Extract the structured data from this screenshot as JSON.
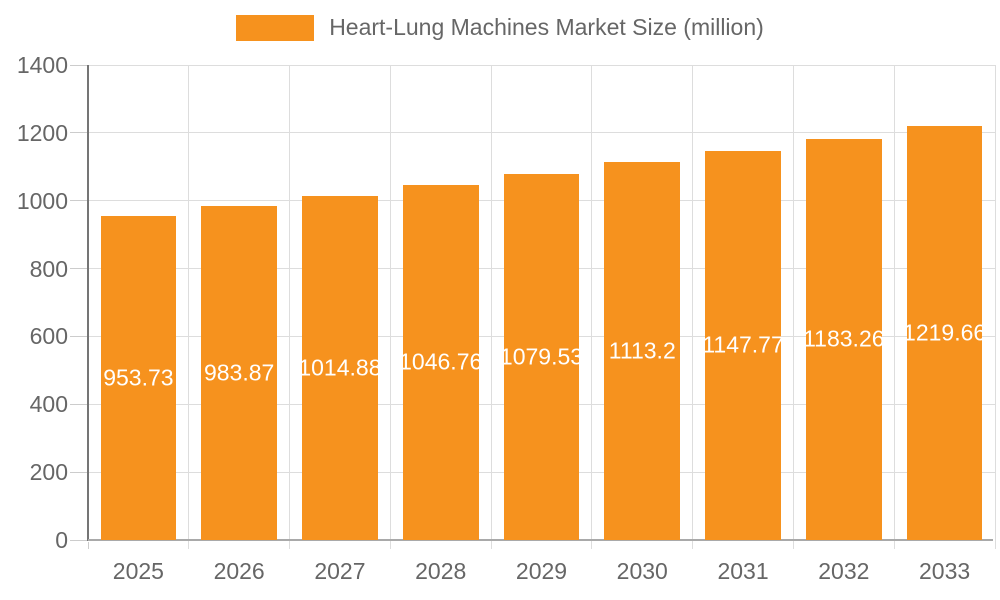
{
  "legend": {
    "label": "Heart-Lung Machines Market Size (million)"
  },
  "chart_data": {
    "type": "bar",
    "title": "Heart-Lung Machines Market Size (million)",
    "categories": [
      "2025",
      "2026",
      "2027",
      "2028",
      "2029",
      "2030",
      "2031",
      "2032",
      "2033"
    ],
    "values": [
      953.73,
      983.87,
      1014.88,
      1046.76,
      1079.53,
      1113.2,
      1147.77,
      1183.26,
      1219.66
    ],
    "value_labels": [
      "953.73",
      "983.87",
      "1014.88",
      "1046.76",
      "1079.53",
      "1113.2",
      "1147.77",
      "1183.26",
      "1219.66"
    ],
    "xlabel": "",
    "ylabel": "",
    "ylim": [
      0,
      1400
    ],
    "yticks": [
      0,
      200,
      400,
      600,
      800,
      1000,
      1200,
      1400
    ],
    "grid": true,
    "legend_position": "top",
    "bar_width_fraction": 0.75
  },
  "colors": {
    "bar": "#F6921E",
    "grid": "#DDDDDD",
    "tick": "#CCCCCC",
    "y_axis": "#757575",
    "x_axis": "#A9A9A9",
    "text": "#666666",
    "value_label": "#FFFFFF",
    "background": "#FFFFFF"
  }
}
